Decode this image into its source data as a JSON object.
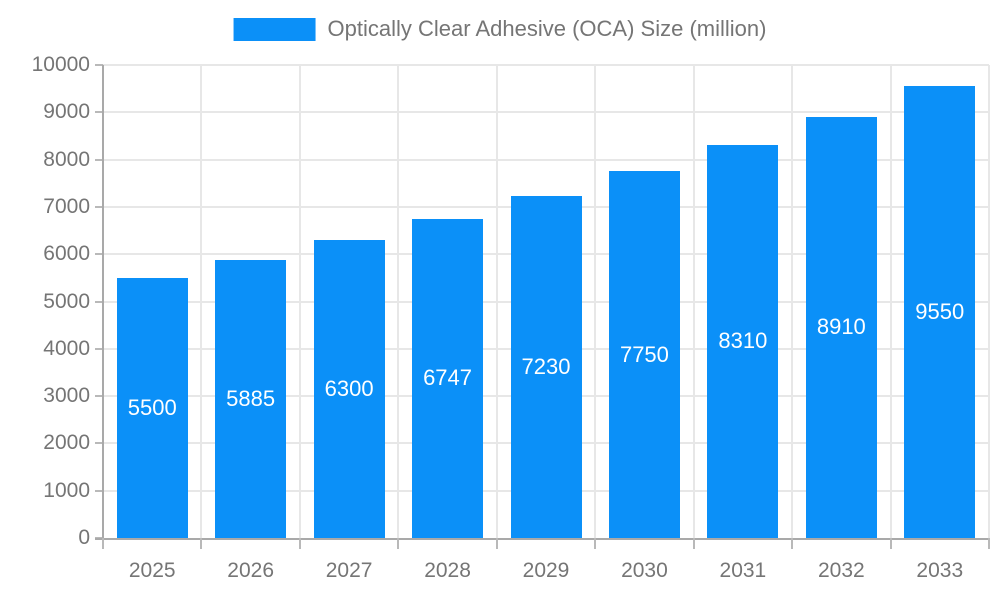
{
  "legend": {
    "label": "Optically Clear Adhesive (OCA) Size (million)"
  },
  "chart_data": {
    "type": "bar",
    "title": "Optically Clear Adhesive (OCA) Size (million)",
    "categories": [
      "2025",
      "2026",
      "2027",
      "2028",
      "2029",
      "2030",
      "2031",
      "2032",
      "2033"
    ],
    "values": [
      5500,
      5885,
      6300,
      6747,
      7230,
      7750,
      8310,
      8910,
      9550
    ],
    "data_labels": [
      "5500",
      "5885",
      "6300",
      "6747",
      "7230",
      "7750",
      "8310",
      "8910",
      "9550"
    ],
    "xlabel": "",
    "ylabel": "",
    "ylim": [
      0,
      10000
    ],
    "yticks": [
      0,
      1000,
      2000,
      3000,
      4000,
      5000,
      6000,
      7000,
      8000,
      9000,
      10000
    ],
    "grid": true,
    "legend_position": "top-center"
  },
  "colors": {
    "bar": "#0b90f8",
    "grid": "#e7e7e7",
    "axis": "#a9a9a9",
    "tick": "#b9b9b9",
    "axis_text": "#757575",
    "bar_label_text": "#ffffff",
    "background": "#ffffff"
  }
}
